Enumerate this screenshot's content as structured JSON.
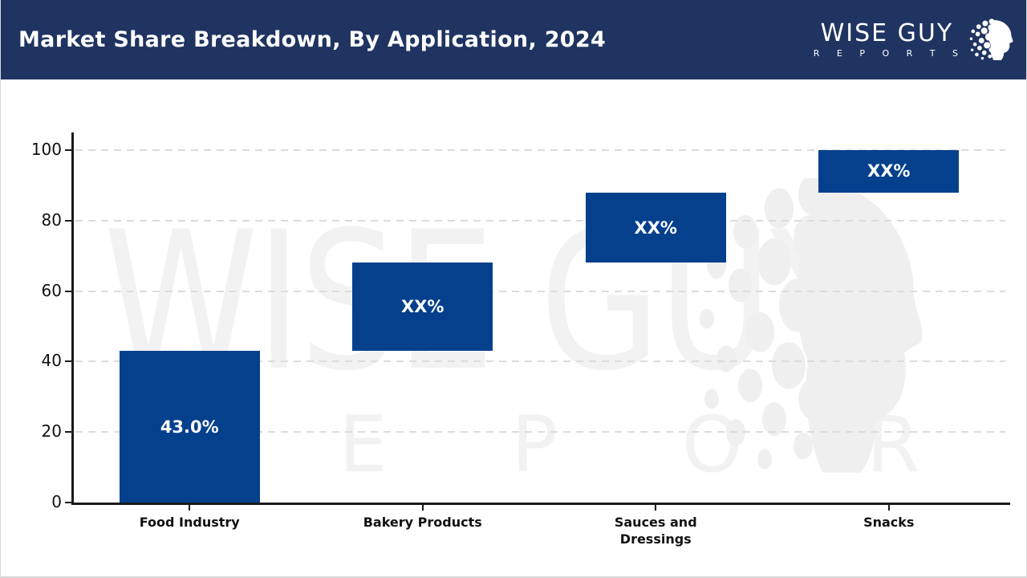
{
  "header": {
    "title": "Market Share Breakdown, By Application, 2024",
    "logo": {
      "line1": "WISE GUY",
      "line2": "R E P O R T S"
    }
  },
  "watermark": {
    "line1": "WISE GUY",
    "line2": "R E P O R T S"
  },
  "colors": {
    "header_bg": "#1f3461",
    "bar": "#05408d",
    "bar_label": "#ffffff",
    "axis": "#1a1a1a",
    "grid": "#dcdcdc",
    "watermark": "#f2f2f2"
  },
  "chart_data": {
    "type": "bar",
    "subtype": "stacked-waterfall",
    "title": "Market Share Breakdown, By Application, 2024",
    "categories": [
      "Food Industry",
      "Bakery Products",
      "Sauces and\nDressings",
      "Snacks"
    ],
    "segments": [
      {
        "category": "Food Industry",
        "start": 0,
        "end": 43,
        "label": "43.0%"
      },
      {
        "category": "Bakery Products",
        "start": 43,
        "end": 68,
        "label": "XX%"
      },
      {
        "category": "Sauces and Dressings",
        "start": 68,
        "end": 88,
        "label": "XX%"
      },
      {
        "category": "Snacks",
        "start": 88,
        "end": 100,
        "label": "XX%"
      }
    ],
    "yticks": [
      0,
      20,
      40,
      60,
      80,
      100
    ],
    "ylim": [
      0,
      105
    ],
    "xlabel": "",
    "ylabel": "",
    "grid": "horizontal-dashed",
    "legend": "none"
  }
}
